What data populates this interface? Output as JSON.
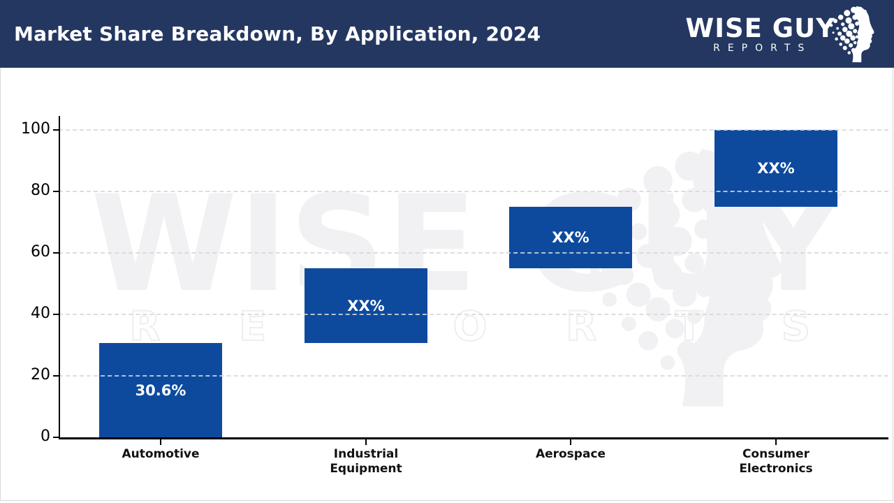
{
  "header": {
    "title": "Market Share Breakdown, By Application, 2024",
    "brand_line1": "WISE GUY",
    "brand_line2": "REPORTS"
  },
  "watermark": {
    "line1": "WISE GUY",
    "line2": "R E P O R T S"
  },
  "chart_data": {
    "type": "bar",
    "subtype": "waterfall",
    "title": "Market Share Breakdown, By Application, 2024",
    "xlabel": "",
    "ylabel": "",
    "categories": [
      "Automotive",
      "Industrial Equipment",
      "Aerospace",
      "Consumer Electronics"
    ],
    "category_label_lines": [
      [
        "Automotive"
      ],
      [
        "Industrial",
        "Equipment"
      ],
      [
        "Aerospace"
      ],
      [
        "Consumer",
        "Electronics"
      ]
    ],
    "segments": [
      {
        "category": "Automotive",
        "start": 0,
        "end": 30.6,
        "label": "30.6%"
      },
      {
        "category": "Industrial Equipment",
        "start": 30.6,
        "end": 55,
        "label": "XX%"
      },
      {
        "category": "Aerospace",
        "start": 55,
        "end": 75,
        "label": "XX%"
      },
      {
        "category": "Consumer Electronics",
        "start": 75,
        "end": 100,
        "label": "XX%"
      }
    ],
    "yticks": [
      0,
      20,
      40,
      60,
      80,
      100
    ],
    "ylim": [
      0,
      105
    ],
    "grid": "horizontal dashed",
    "legend": "none",
    "bar_color": "#0d4a9e",
    "bar_label_color": "#ffffff",
    "header_color": "#233761",
    "gridline_color": "#d7d7d7",
    "axis_color": "#000000"
  }
}
